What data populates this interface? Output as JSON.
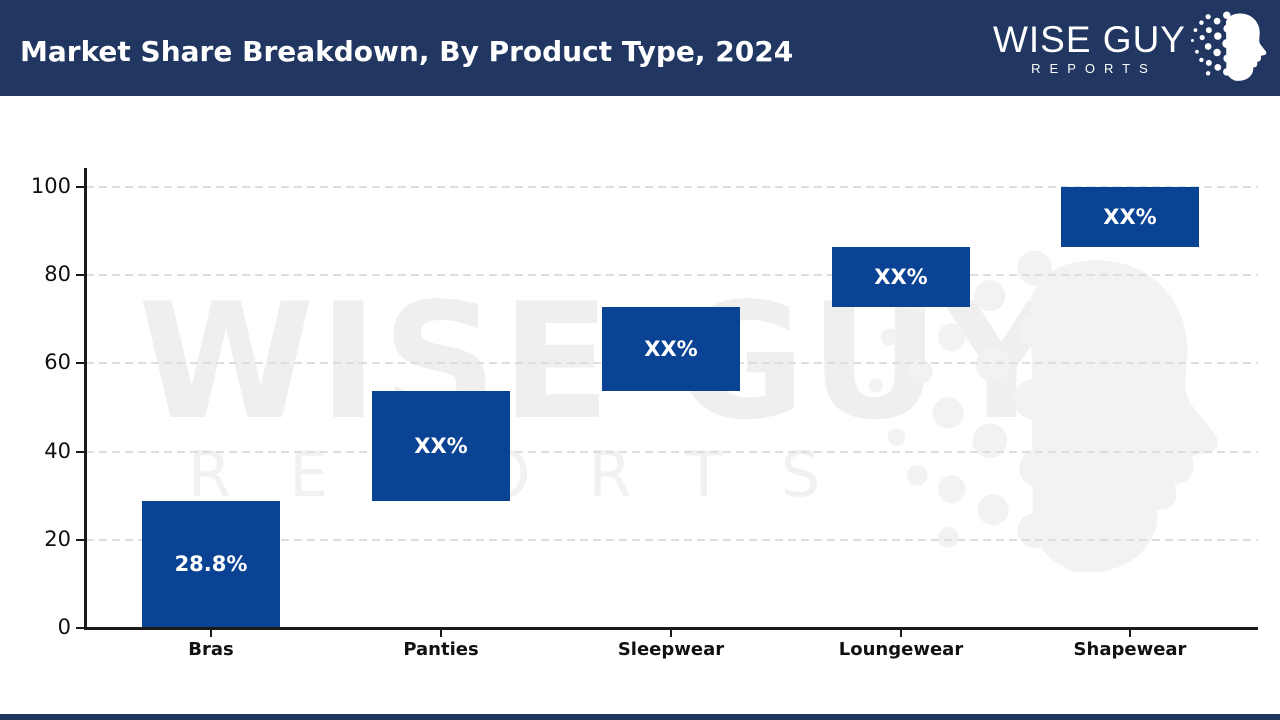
{
  "header": {
    "title": "Market Share Breakdown, By Product Type, 2024",
    "logo": {
      "line1": "WISE GUY",
      "line2": "REPORTS"
    }
  },
  "watermark": {
    "line1": "WISE GUY",
    "line2": "REPORTS"
  },
  "colors": {
    "header_bg": "#213761",
    "bar": "#0a4294",
    "grid": "#dedede",
    "axis": "#1a1a1a",
    "bar_label": "#ffffff",
    "watermark": "#efeff0"
  },
  "chart_data": {
    "type": "bar",
    "subtype": "waterfall",
    "title": "Market Share Breakdown, By Product Type, 2024",
    "categories": [
      "Bras",
      "Panties",
      "Sleepwear",
      "Loungewear",
      "Shapewear"
    ],
    "segments": [
      {
        "category": "Bras",
        "start": 0,
        "end": 28.8,
        "label": "28.8%"
      },
      {
        "category": "Panties",
        "start": 28.8,
        "end": 53.7,
        "label": "XX%"
      },
      {
        "category": "Sleepwear",
        "start": 53.7,
        "end": 72.7,
        "label": "XX%"
      },
      {
        "category": "Loungewear",
        "start": 72.7,
        "end": 86.3,
        "label": "XX%"
      },
      {
        "category": "Shapewear",
        "start": 86.3,
        "end": 100,
        "label": "XX%"
      }
    ],
    "xlabel": "",
    "ylabel": "",
    "ylim": [
      0,
      100
    ],
    "yticks": [
      0,
      20,
      40,
      60,
      80,
      100
    ],
    "grid": "horizontal-dashed",
    "legend": "none",
    "bar_color": "#0a4294"
  }
}
